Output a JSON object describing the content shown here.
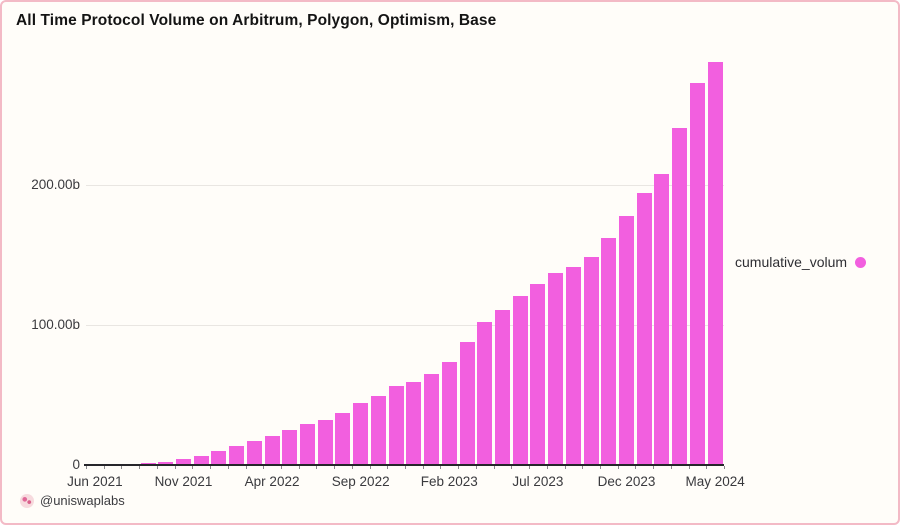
{
  "frame": {
    "border_color": "#f3bac6",
    "background": "#fffdf9"
  },
  "title": "All Time Protocol Volume on Arbitrum, Polygon, Optimism, Base",
  "legend": {
    "label": "cumulative_volum",
    "marker_color": "#f25fdf"
  },
  "attribution": {
    "handle": "@uniswaplabs",
    "icon": "uniswap-logo-icon"
  },
  "chart_data": {
    "type": "bar",
    "title": "All Time Protocol Volume on Arbitrum, Polygon, Optimism, Base",
    "unit": "USD, billions (b)",
    "categories": [
      "Jun 2021",
      "Jul 2021",
      "Aug 2021",
      "Sep 2021",
      "Oct 2021",
      "Nov 2021",
      "Dec 2021",
      "Jan 2022",
      "Feb 2022",
      "Mar 2022",
      "Apr 2022",
      "May 2022",
      "Jun 2022",
      "Jul 2022",
      "Aug 2022",
      "Sep 2022",
      "Oct 2022",
      "Nov 2022",
      "Dec 2022",
      "Jan 2023",
      "Feb 2023",
      "Mar 2023",
      "Apr 2023",
      "May 2023",
      "Jun 2023",
      "Jul 2023",
      "Aug 2023",
      "Sep 2023",
      "Oct 2023",
      "Nov 2023",
      "Dec 2023",
      "Jan 2024",
      "Feb 2024",
      "Mar 2024",
      "Apr 2024",
      "May 2024"
    ],
    "series": [
      {
        "name": "cumulative_volum",
        "color": "#f25fdf",
        "values": [
          0.1,
          0.3,
          0.6,
          1.2,
          2.4,
          4.4,
          6.5,
          10,
          13.6,
          17,
          21,
          24.8,
          29,
          32,
          37,
          44,
          49.5,
          56.5,
          59,
          65,
          73.5,
          88,
          102,
          111,
          121,
          129,
          137,
          141.5,
          148.5,
          162,
          178,
          194,
          208,
          241,
          273,
          288
        ]
      }
    ],
    "x_tick_labels": [
      "Jun 2021",
      "Nov 2021",
      "Apr 2022",
      "Sep 2022",
      "Feb 2023",
      "Jul 2023",
      "Dec 2023",
      "May 2024"
    ],
    "x_tick_every": 5,
    "y_ticks": [
      {
        "value": 0,
        "label": "0"
      },
      {
        "value": 100,
        "label": "100.00b"
      },
      {
        "value": 200,
        "label": "200.00b"
      }
    ],
    "ylim": [
      0,
      295
    ],
    "grid": "horizontal",
    "legend_position": "right"
  }
}
